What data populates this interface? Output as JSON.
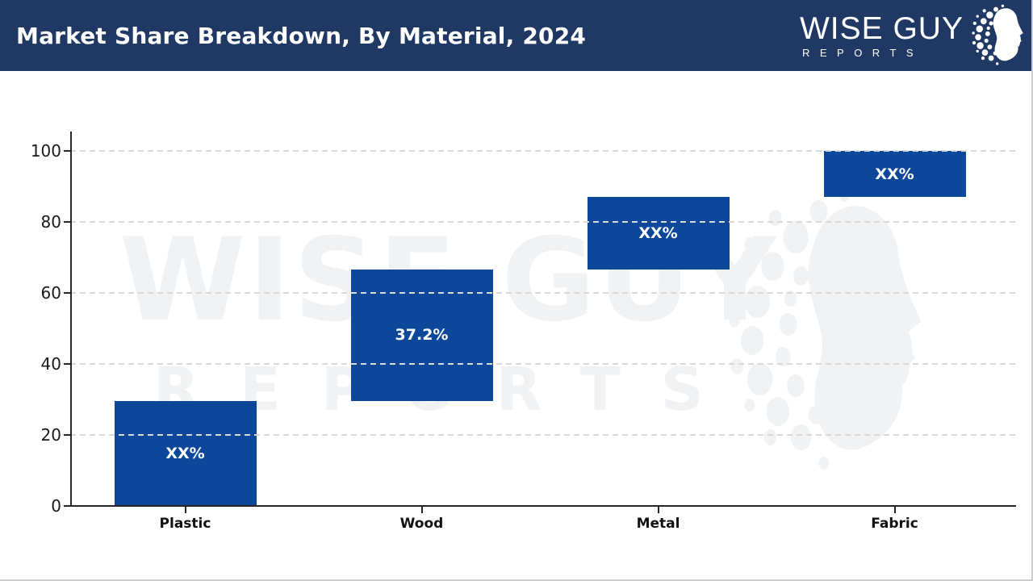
{
  "header": {
    "title": "Market Share Breakdown, By Material, 2024",
    "logo": {
      "line1": "WISE GUY",
      "line2": "REPORTS"
    }
  },
  "watermark": {
    "line1": "WISE GUY",
    "line2": "REPORTS"
  },
  "colors": {
    "header_bg": "#203864",
    "bar_blue": "#0d4799",
    "grid": "#d9d9d9",
    "spine": "#262626",
    "bar_label": "#ffffff",
    "watermark": "#f0f2f4"
  },
  "chart_data": {
    "type": "bar",
    "subtype": "waterfall",
    "title": "Market Share Breakdown, By Material, 2024",
    "categories": [
      "Plastic",
      "Wood",
      "Metal",
      "Fabric"
    ],
    "segments": [
      {
        "category": "Plastic",
        "start": 0,
        "end": 29.5,
        "label": "XX%"
      },
      {
        "category": "Wood",
        "start": 29.5,
        "end": 66.7,
        "label": "37.2%",
        "value": 37.2
      },
      {
        "category": "Metal",
        "start": 66.7,
        "end": 87.0,
        "label": "XX%"
      },
      {
        "category": "Fabric",
        "start": 87.0,
        "end": 100.0,
        "label": "XX%"
      }
    ],
    "xlabel": "",
    "ylabel": "",
    "ylim": [
      0,
      105
    ],
    "yticks": [
      0,
      20,
      40,
      60,
      80,
      100
    ],
    "grid": "horizontal-dashed",
    "legend": "none"
  }
}
